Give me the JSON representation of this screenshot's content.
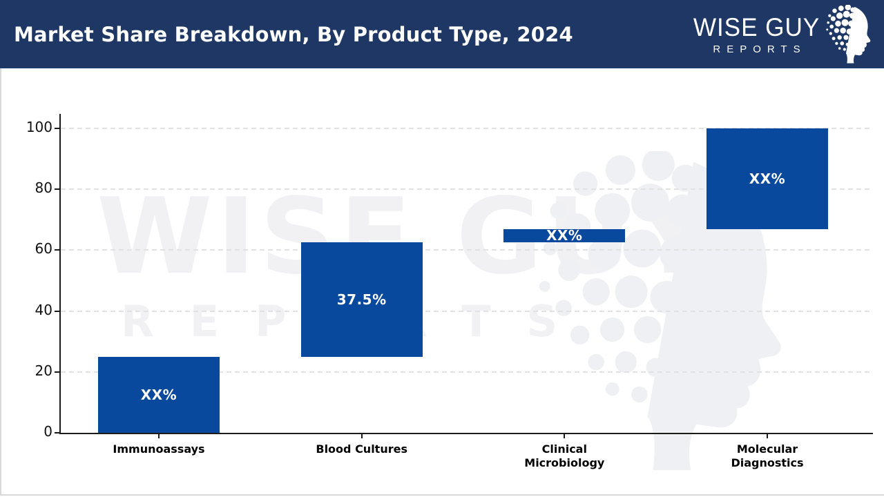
{
  "header": {
    "title": "Market Share Breakdown, By Product Type, 2024",
    "logo": {
      "wordmark": "WISE GUY",
      "subtext": "REPORTS"
    }
  },
  "watermark": {
    "line1": "WISE GUY",
    "line2": "REPORTS"
  },
  "colors": {
    "header_bg": "#1f3764",
    "bar": "#09499d",
    "axis": "#1a1a1a",
    "gridline": "#e1e1e1",
    "bar_label_text": "#ffffff",
    "watermark": "#f1f1f4"
  },
  "chart_data": {
    "type": "bar",
    "subtype": "floating-waterfall",
    "title": "Market Share Breakdown, By Product Type, 2024",
    "categories": [
      "Immunoassays",
      "Blood Cultures",
      "Clinical Microbiology",
      "Molecular Diagnostics"
    ],
    "category_lines": [
      [
        "Immunoassays"
      ],
      [
        "Blood Cultures"
      ],
      [
        "Clinical",
        "Microbiology"
      ],
      [
        "Molecular",
        "Diagnostics"
      ]
    ],
    "series": [
      {
        "name": "Market share (%)",
        "segments": [
          {
            "start": 0,
            "end": 25,
            "label": "XX%"
          },
          {
            "start": 25,
            "end": 62.5,
            "label": "37.5%"
          },
          {
            "start": 62.5,
            "end": 67,
            "label": "XX%"
          },
          {
            "start": 67,
            "end": 100,
            "label": "XX%"
          }
        ]
      }
    ],
    "value_labels": [
      "XX%",
      "37.5%",
      "XX%",
      "XX%"
    ],
    "ylim": [
      0,
      100
    ],
    "yticks": [
      0,
      20,
      40,
      60,
      80,
      100
    ],
    "grid": "horizontal-dashed",
    "legend_position": "none",
    "bar_color": "#09499d"
  }
}
